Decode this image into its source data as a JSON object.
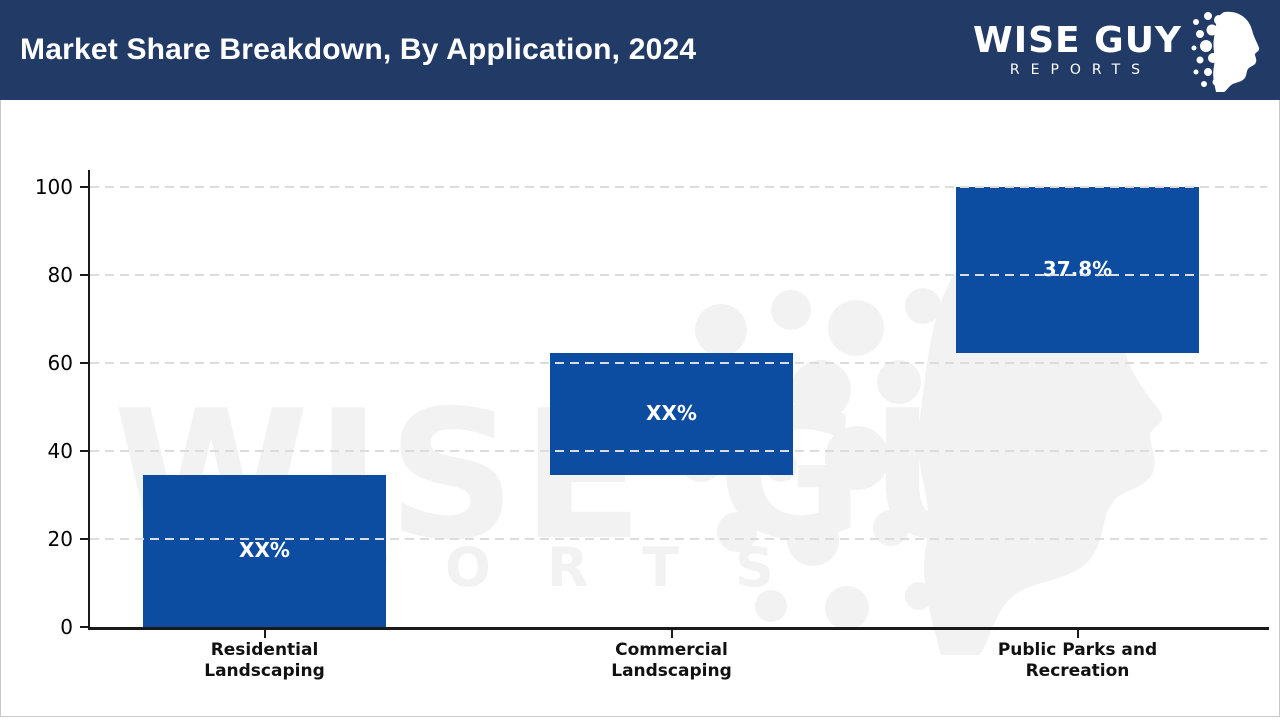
{
  "header": {
    "title": "Market Share Breakdown, By Application, 2024",
    "logo": {
      "name": "WISE GUY",
      "tagline": "REPORTS"
    }
  },
  "watermark": {
    "line1": "WISE GUY",
    "line2": "REPORTS"
  },
  "colors": {
    "header_bg": "#213a66",
    "bar_fill": "#0c4da2",
    "bar_label_text": "#ffffff",
    "gridline": "#dcdcdc",
    "axis": "#1a1a1a",
    "tick_label": "#000000",
    "watermark": "#f2f2f3"
  },
  "chart_data": {
    "type": "bar",
    "subtype": "stacked-waterfall-segments",
    "title": "Market Share Breakdown, By Application, 2024",
    "xlabel": "",
    "ylabel": "",
    "ylim": [
      0,
      100
    ],
    "yticks": [
      0,
      20,
      40,
      60,
      80,
      100
    ],
    "grid": "horizontal-dashed",
    "legend": "none",
    "categories": [
      "Residential\nLandscaping",
      "Commercial\nLandscaping",
      "Public Parks and\nRecreation"
    ],
    "segments": [
      {
        "category": "Residential Landscaping",
        "start": 0,
        "end": 34.4,
        "value_label": "XX%"
      },
      {
        "category": "Commercial Landscaping",
        "start": 34.4,
        "end": 62.2,
        "value_label": "XX%"
      },
      {
        "category": "Public Parks and Recreation",
        "start": 62.2,
        "end": 100,
        "value_label": "37.8%"
      }
    ]
  }
}
